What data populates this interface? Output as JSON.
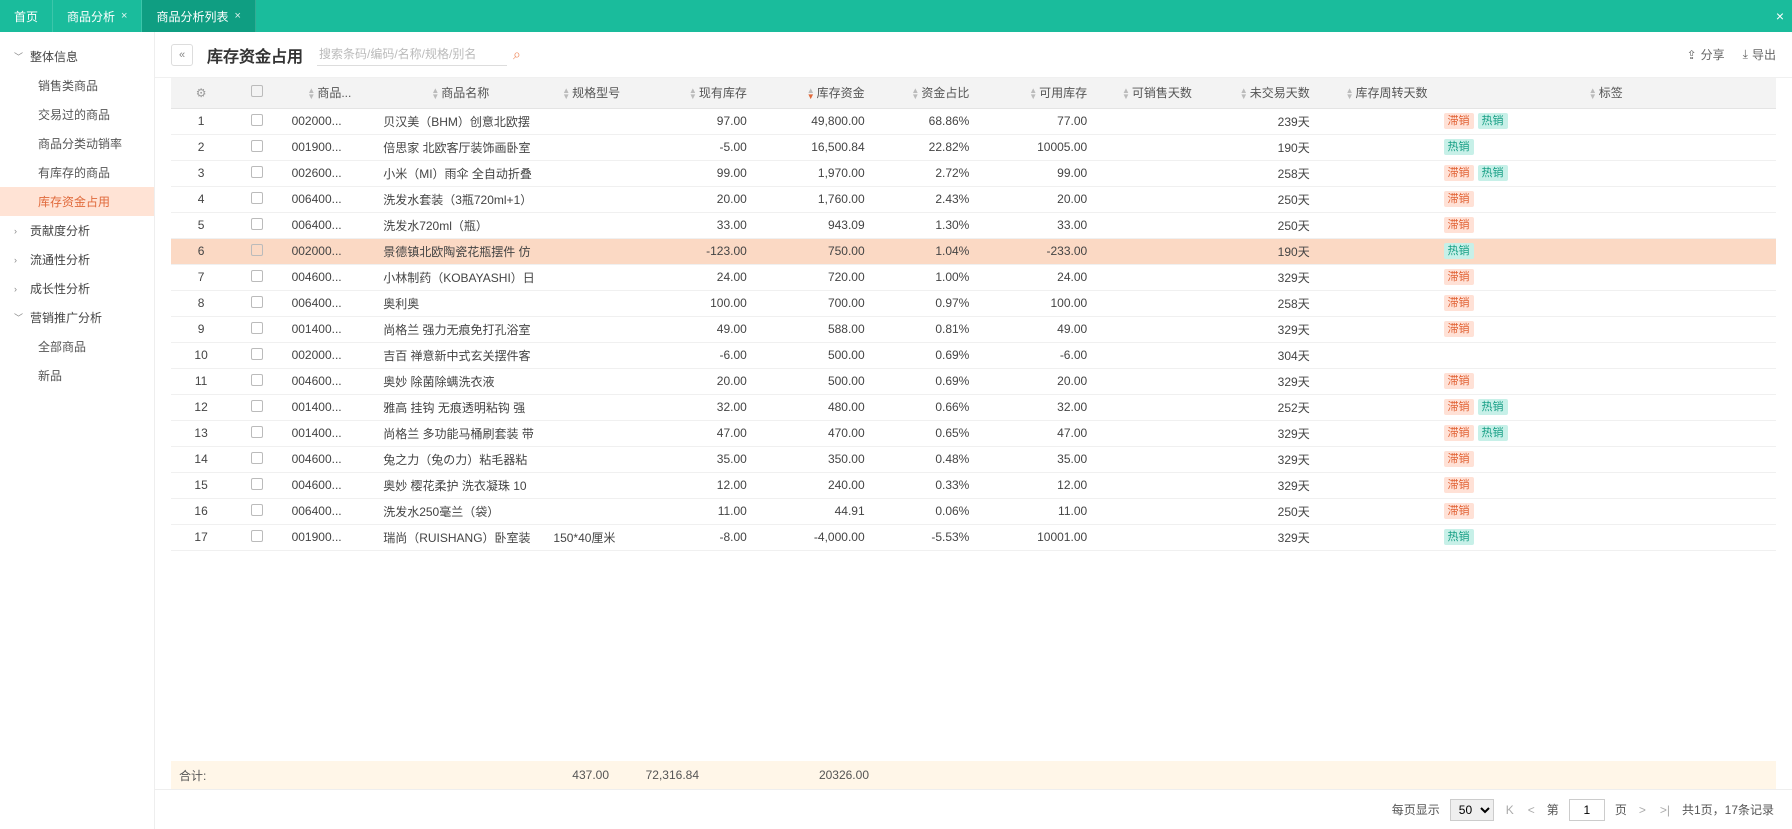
{
  "tabs": [
    {
      "label": "首页",
      "closable": false,
      "active": false
    },
    {
      "label": "商品分析",
      "closable": true,
      "active": false
    },
    {
      "label": "商品分析列表",
      "closable": true,
      "active": true
    }
  ],
  "sidebar": {
    "g0": {
      "label": "整体信息",
      "expanded": true,
      "items": [
        {
          "label": "销售类商品"
        },
        {
          "label": "交易过的商品"
        },
        {
          "label": "商品分类动销率"
        },
        {
          "label": "有库存的商品"
        },
        {
          "label": "库存资金占用",
          "active": true
        }
      ]
    },
    "g1": {
      "label": "贡献度分析",
      "expanded": false
    },
    "g2": {
      "label": "流通性分析",
      "expanded": false
    },
    "g3": {
      "label": "成长性分析",
      "expanded": false
    },
    "g4": {
      "label": "营销推广分析",
      "expanded": true,
      "items": [
        {
          "label": "全部商品"
        },
        {
          "label": "新品"
        }
      ]
    }
  },
  "page": {
    "title": "库存资金占用",
    "search_ph": "搜索条码/编码/名称/规格/别名",
    "share": "分享",
    "export": "导出"
  },
  "cols": {
    "idx": "",
    "code": "商品...",
    "name": "商品名称",
    "spec": "规格型号",
    "stk": "现有库存",
    "amt": "库存资金",
    "pct": "资金占比",
    "avl": "可用库存",
    "sday": "可销售天数",
    "notr": "未交易天数",
    "turn": "库存周转天数",
    "tag": "标签"
  },
  "tagLabels": {
    "slow": "滞销",
    "hot": "热销"
  },
  "rows": [
    {
      "i": 1,
      "code": "002000...",
      "name": "贝汉美（BHM）创意北欧摆",
      "spec": "",
      "stk": "97.00",
      "amt": "49,800.00",
      "pct": "68.86%",
      "avl": "77.00",
      "sday": "",
      "notr": "239天",
      "turn": "",
      "tags": [
        "slow",
        "hot"
      ]
    },
    {
      "i": 2,
      "code": "001900...",
      "name": "倍思家 北欧客厅装饰画卧室",
      "spec": "",
      "stk": "-5.00",
      "amt": "16,500.84",
      "pct": "22.82%",
      "avl": "10005.00",
      "sday": "",
      "notr": "190天",
      "turn": "",
      "tags": [
        "hot"
      ]
    },
    {
      "i": 3,
      "code": "002600...",
      "name": "小米（MI）雨伞 全自动折叠",
      "spec": "",
      "stk": "99.00",
      "amt": "1,970.00",
      "pct": "2.72%",
      "avl": "99.00",
      "sday": "",
      "notr": "258天",
      "turn": "",
      "tags": [
        "slow",
        "hot"
      ]
    },
    {
      "i": 4,
      "code": "006400...",
      "name": "洗发水套装（3瓶720ml+1）",
      "spec": "",
      "stk": "20.00",
      "amt": "1,760.00",
      "pct": "2.43%",
      "avl": "20.00",
      "sday": "",
      "notr": "250天",
      "turn": "",
      "tags": [
        "slow"
      ]
    },
    {
      "i": 5,
      "code": "006400...",
      "name": "洗发水720ml（瓶）",
      "spec": "",
      "stk": "33.00",
      "amt": "943.09",
      "pct": "1.30%",
      "avl": "33.00",
      "sday": "",
      "notr": "250天",
      "turn": "",
      "tags": [
        "slow"
      ]
    },
    {
      "i": 6,
      "code": "002000...",
      "name": "景德镇北欧陶瓷花瓶摆件 仿",
      "spec": "",
      "stk": "-123.00",
      "amt": "750.00",
      "pct": "1.04%",
      "avl": "-233.00",
      "sday": "",
      "notr": "190天",
      "turn": "",
      "tags": [
        "hot"
      ],
      "hl": true
    },
    {
      "i": 7,
      "code": "004600...",
      "name": "小林制药（KOBAYASHI）日",
      "spec": "",
      "stk": "24.00",
      "amt": "720.00",
      "pct": "1.00%",
      "avl": "24.00",
      "sday": "",
      "notr": "329天",
      "turn": "",
      "tags": [
        "slow"
      ]
    },
    {
      "i": 8,
      "code": "006400...",
      "name": "奥利奥",
      "spec": "",
      "stk": "100.00",
      "amt": "700.00",
      "pct": "0.97%",
      "avl": "100.00",
      "sday": "",
      "notr": "258天",
      "turn": "",
      "tags": [
        "slow"
      ]
    },
    {
      "i": 9,
      "code": "001400...",
      "name": "尚格兰 强力无痕免打孔浴室",
      "spec": "",
      "stk": "49.00",
      "amt": "588.00",
      "pct": "0.81%",
      "avl": "49.00",
      "sday": "",
      "notr": "329天",
      "turn": "",
      "tags": [
        "slow"
      ]
    },
    {
      "i": 10,
      "code": "002000...",
      "name": "吉百 禅意新中式玄关摆件客",
      "spec": "",
      "stk": "-6.00",
      "amt": "500.00",
      "pct": "0.69%",
      "avl": "-6.00",
      "sday": "",
      "notr": "304天",
      "turn": "",
      "tags": []
    },
    {
      "i": 11,
      "code": "004600...",
      "name": "奥妙 除菌除螨洗衣液",
      "spec": "",
      "stk": "20.00",
      "amt": "500.00",
      "pct": "0.69%",
      "avl": "20.00",
      "sday": "",
      "notr": "329天",
      "turn": "",
      "tags": [
        "slow"
      ]
    },
    {
      "i": 12,
      "code": "001400...",
      "name": "雅高 挂钩 无痕透明粘钩 强",
      "spec": "",
      "stk": "32.00",
      "amt": "480.00",
      "pct": "0.66%",
      "avl": "32.00",
      "sday": "",
      "notr": "252天",
      "turn": "",
      "tags": [
        "slow",
        "hot"
      ]
    },
    {
      "i": 13,
      "code": "001400...",
      "name": "尚格兰 多功能马桶刷套装 带",
      "spec": "",
      "stk": "47.00",
      "amt": "470.00",
      "pct": "0.65%",
      "avl": "47.00",
      "sday": "",
      "notr": "329天",
      "turn": "",
      "tags": [
        "slow",
        "hot"
      ]
    },
    {
      "i": 14,
      "code": "004600...",
      "name": "兔之力（兔の力）粘毛器粘",
      "spec": "",
      "stk": "35.00",
      "amt": "350.00",
      "pct": "0.48%",
      "avl": "35.00",
      "sday": "",
      "notr": "329天",
      "turn": "",
      "tags": [
        "slow"
      ]
    },
    {
      "i": 15,
      "code": "004600...",
      "name": "奥妙 樱花柔护 洗衣凝珠 10",
      "spec": "",
      "stk": "12.00",
      "amt": "240.00",
      "pct": "0.33%",
      "avl": "12.00",
      "sday": "",
      "notr": "329天",
      "turn": "",
      "tags": [
        "slow"
      ]
    },
    {
      "i": 16,
      "code": "006400...",
      "name": "洗发水250毫兰（袋）",
      "spec": "",
      "stk": "11.00",
      "amt": "44.91",
      "pct": "0.06%",
      "avl": "11.00",
      "sday": "",
      "notr": "250天",
      "turn": "",
      "tags": [
        "slow"
      ]
    },
    {
      "i": 17,
      "code": "001900...",
      "name": "瑞尚（RUISHANG）卧室装",
      "spec": "150*40厘米",
      "stk": "-8.00",
      "amt": "-4,000.00",
      "pct": "-5.53%",
      "avl": "10001.00",
      "sday": "",
      "notr": "329天",
      "turn": "",
      "tags": [
        "hot"
      ]
    }
  ],
  "totals": {
    "label": "合计:",
    "stk": "437.00",
    "amt": "72,316.84",
    "avl": "20326.00"
  },
  "pager": {
    "pp_label": "每页显示",
    "pp_value": "50",
    "page_prefix": "第",
    "page_value": "1",
    "page_suffix": "页",
    "summary": "共1页，17条记录"
  }
}
